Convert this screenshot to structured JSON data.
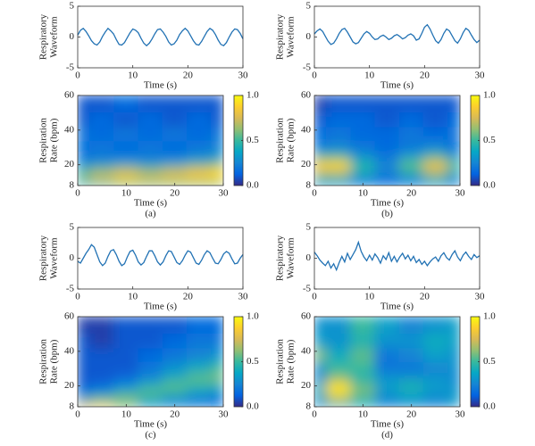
{
  "chart_data": [
    {
      "type": "line",
      "xlabel": "Time (s)",
      "ylabel": [
        "Respiratory",
        "Waveform"
      ],
      "color": "#2272b4",
      "x": [
        0,
        0.5,
        1,
        1.5,
        2,
        2.5,
        3,
        3.5,
        4,
        4.5,
        5,
        5.5,
        6,
        6.5,
        7,
        7.5,
        8,
        8.5,
        9,
        9.5,
        10,
        10.5,
        11,
        11.5,
        12,
        12.5,
        13,
        13.5,
        14,
        14.5,
        15,
        15.5,
        16,
        16.5,
        17,
        17.5,
        18,
        18.5,
        19,
        19.5,
        20,
        20.5,
        21,
        21.5,
        22,
        22.5,
        23,
        23.5,
        24,
        24.5,
        25,
        25.5,
        26,
        26.5,
        27,
        27.5,
        28,
        28.5,
        29,
        29.5,
        30
      ],
      "values": [
        0.3,
        1.1,
        1.4,
        0.9,
        0.2,
        -0.6,
        -1.1,
        -1.3,
        -0.8,
        0.1,
        0.8,
        1.4,
        1.0,
        0.5,
        -0.4,
        -1.2,
        -1.3,
        -0.9,
        -0.1,
        0.7,
        1.3,
        1.1,
        0.7,
        -0.2,
        -1.0,
        -1.4,
        -1.0,
        -0.3,
        0.5,
        1.2,
        1.3,
        0.8,
        0.1,
        -0.8,
        -1.3,
        -1.1,
        -0.5,
        0.4,
        1.0,
        1.4,
        1.0,
        0.2,
        -0.6,
        -1.2,
        -1.3,
        -0.7,
        0.1,
        0.9,
        1.4,
        1.1,
        0.4,
        -0.5,
        -1.2,
        -1.4,
        -0.9,
        0.0,
        0.8,
        1.3,
        1.2,
        0.6,
        -0.3
      ],
      "xlim": [
        0,
        30
      ],
      "xticks": [
        0,
        10,
        20,
        30
      ],
      "ylim": [
        -5,
        5
      ],
      "yticks": [
        -5,
        0,
        5
      ]
    },
    {
      "type": "heatmap",
      "xlabel": "Time (s)",
      "ylabel": [
        "Respiration",
        "Rate (bpm)"
      ],
      "caption": "(a)",
      "x": [
        0,
        5,
        10,
        15,
        20,
        25,
        30
      ],
      "y": [
        9,
        13,
        17,
        21,
        25,
        30,
        38,
        46,
        55
      ],
      "z": [
        [
          0.4,
          0.5,
          0.6,
          0.6,
          0.6,
          0.6,
          0.6
        ],
        [
          0.6,
          0.75,
          0.85,
          0.75,
          0.8,
          0.85,
          0.9
        ],
        [
          0.45,
          0.6,
          0.7,
          0.6,
          0.7,
          0.8,
          0.9
        ],
        [
          0.25,
          0.3,
          0.35,
          0.3,
          0.35,
          0.45,
          0.55
        ],
        [
          0.2,
          0.2,
          0.2,
          0.2,
          0.2,
          0.25,
          0.3
        ],
        [
          0.15,
          0.2,
          0.15,
          0.2,
          0.15,
          0.2,
          0.25
        ],
        [
          0.2,
          0.15,
          0.2,
          0.15,
          0.2,
          0.15,
          0.2
        ],
        [
          0.1,
          0.15,
          0.1,
          0.15,
          0.1,
          0.15,
          0.1
        ],
        [
          0.1,
          0.1,
          0.15,
          0.1,
          0.1,
          0.1,
          0.1
        ]
      ],
      "xlim": [
        0,
        30
      ],
      "xticks": [
        0,
        10,
        20,
        30
      ],
      "ylim": [
        8,
        60
      ],
      "yticks": [
        8,
        20,
        40,
        60
      ],
      "zlim": [
        0,
        1
      ],
      "zticks": [
        {
          "value": 0,
          "label": "0.0"
        },
        {
          "value": 0.5,
          "label": "0.5"
        },
        {
          "value": 1,
          "label": "1.0"
        }
      ],
      "colors": [
        "#352a87",
        "#0363e1",
        "#1485d4",
        "#06a7c6",
        "#38b99e",
        "#92bf73",
        "#d9ba56",
        "#fcce2e",
        "#f9fb0e"
      ]
    },
    {
      "type": "line",
      "xlabel": "Time (s)",
      "ylabel": [
        "Respiratory",
        "Waveform"
      ],
      "color": "#2272b4",
      "x": [
        0,
        0.5,
        1,
        1.5,
        2,
        2.5,
        3,
        3.5,
        4,
        4.5,
        5,
        5.5,
        6,
        6.5,
        7,
        7.5,
        8,
        8.5,
        9,
        9.5,
        10,
        10.5,
        11,
        11.5,
        12,
        12.5,
        13,
        13.5,
        14,
        14.5,
        15,
        15.5,
        16,
        16.5,
        17,
        17.5,
        18,
        18.5,
        19,
        19.5,
        20,
        20.5,
        21,
        21.5,
        22,
        22.5,
        23,
        23.5,
        24,
        24.5,
        25,
        25.5,
        26,
        26.5,
        27,
        27.5,
        28,
        28.5,
        29,
        29.5,
        30
      ],
      "values": [
        0.5,
        1.0,
        1.3,
        0.9,
        0.1,
        -0.7,
        -1.2,
        -1.0,
        -0.3,
        0.6,
        1.2,
        1.4,
        0.8,
        0.0,
        -0.8,
        -1.1,
        -0.9,
        -0.2,
        0.5,
        0.9,
        0.6,
        0.0,
        -0.4,
        -0.3,
        0.1,
        0.3,
        0.0,
        -0.4,
        -0.2,
        0.2,
        0.4,
        0.1,
        -0.3,
        -0.1,
        0.3,
        0.5,
        0.2,
        -0.5,
        -0.3,
        0.6,
        1.6,
        2.0,
        1.3,
        0.3,
        -0.6,
        -1.0,
        -0.4,
        0.6,
        1.3,
        1.0,
        0.2,
        -0.6,
        -1.0,
        -0.3,
        0.7,
        1.4,
        1.1,
        0.3,
        -0.4,
        -0.9,
        -0.5
      ],
      "xlim": [
        0,
        30
      ],
      "xticks": [
        0,
        10,
        20,
        30
      ],
      "ylim": [
        -5,
        5
      ],
      "yticks": [
        -5,
        0,
        5
      ]
    },
    {
      "type": "heatmap",
      "xlabel": "Time (s)",
      "ylabel": [
        "Respiration",
        "Rate (bpm)"
      ],
      "caption": "(b)",
      "x": [
        0,
        5,
        10,
        15,
        20,
        25,
        30
      ],
      "y": [
        9,
        13,
        17,
        21,
        25,
        30,
        38,
        46,
        55
      ],
      "z": [
        [
          0.3,
          0.3,
          0.2,
          0.15,
          0.2,
          0.3,
          0.2
        ],
        [
          0.5,
          0.5,
          0.3,
          0.2,
          0.3,
          0.5,
          0.3
        ],
        [
          0.8,
          0.8,
          0.45,
          0.25,
          0.5,
          0.75,
          0.45
        ],
        [
          0.85,
          0.9,
          0.45,
          0.25,
          0.55,
          0.8,
          0.5
        ],
        [
          0.5,
          0.5,
          0.3,
          0.2,
          0.35,
          0.5,
          0.3
        ],
        [
          0.2,
          0.25,
          0.2,
          0.15,
          0.2,
          0.25,
          0.15
        ],
        [
          0.15,
          0.2,
          0.15,
          0.15,
          0.2,
          0.15,
          0.2
        ],
        [
          0.1,
          0.15,
          0.15,
          0.1,
          0.15,
          0.1,
          0.15
        ],
        [
          0.05,
          0.1,
          0.1,
          0.1,
          0.1,
          0.1,
          0.1
        ]
      ],
      "xlim": [
        0,
        30
      ],
      "xticks": [
        0,
        10,
        20,
        30
      ],
      "ylim": [
        8,
        60
      ],
      "yticks": [
        8,
        20,
        40,
        60
      ],
      "zlim": [
        0,
        1
      ],
      "zticks": [
        {
          "value": 0,
          "label": "0.0"
        },
        {
          "value": 0.5,
          "label": "0.5"
        },
        {
          "value": 1,
          "label": "1.0"
        }
      ],
      "colors": [
        "#352a87",
        "#0363e1",
        "#1485d4",
        "#06a7c6",
        "#38b99e",
        "#92bf73",
        "#d9ba56",
        "#fcce2e",
        "#f9fb0e"
      ]
    },
    {
      "type": "line",
      "xlabel": "Time (s)",
      "ylabel": [
        "Respiratory",
        "Waveform"
      ],
      "color": "#2272b4",
      "x": [
        0,
        0.5,
        1,
        1.5,
        2,
        2.5,
        3,
        3.5,
        4,
        4.5,
        5,
        5.5,
        6,
        6.5,
        7,
        7.5,
        8,
        8.5,
        9,
        9.5,
        10,
        10.5,
        11,
        11.5,
        12,
        12.5,
        13,
        13.5,
        14,
        14.5,
        15,
        15.5,
        16,
        16.5,
        17,
        17.5,
        18,
        18.5,
        19,
        19.5,
        20,
        20.5,
        21,
        21.5,
        22,
        22.5,
        23,
        23.5,
        24,
        24.5,
        25,
        25.5,
        26,
        26.5,
        27,
        27.5,
        28,
        28.5,
        29,
        29.5,
        30
      ],
      "values": [
        -0.5,
        -0.8,
        0.0,
        0.8,
        1.4,
        2.2,
        1.8,
        0.6,
        -0.6,
        -1.2,
        -0.8,
        0.3,
        1.2,
        1.4,
        0.6,
        -0.5,
        -1.2,
        -0.9,
        0.2,
        1.1,
        1.3,
        0.5,
        -0.6,
        -1.1,
        -0.7,
        0.3,
        1.2,
        1.2,
        0.4,
        -0.6,
        -1.1,
        -0.6,
        0.4,
        1.2,
        1.1,
        0.2,
        -0.7,
        -1.0,
        -0.4,
        0.5,
        1.2,
        1.0,
        0.1,
        -0.8,
        -1.0,
        -0.3,
        0.6,
        1.2,
        0.9,
        0.0,
        -0.8,
        -0.9,
        -0.2,
        0.7,
        1.1,
        0.8,
        -0.1,
        -0.9,
        -0.8,
        0.0,
        0.6
      ],
      "xlim": [
        0,
        30
      ],
      "xticks": [
        0,
        10,
        20,
        30
      ],
      "ylim": [
        -5,
        5
      ],
      "yticks": [
        -5,
        0,
        5
      ]
    },
    {
      "type": "heatmap",
      "xlabel": "Time (s)",
      "ylabel": [
        "Respiration",
        "Rate (bpm)"
      ],
      "caption": "(c)",
      "x": [
        0,
        5,
        10,
        15,
        20,
        25,
        30
      ],
      "y": [
        9,
        13,
        17,
        21,
        25,
        30,
        38,
        46,
        55
      ],
      "z": [
        [
          0.75,
          0.85,
          0.6,
          0.3,
          0.25,
          0.2,
          0.15
        ],
        [
          0.35,
          0.5,
          0.6,
          0.45,
          0.3,
          0.25,
          0.2
        ],
        [
          0.15,
          0.25,
          0.4,
          0.55,
          0.5,
          0.35,
          0.3
        ],
        [
          0.1,
          0.15,
          0.25,
          0.4,
          0.55,
          0.5,
          0.45
        ],
        [
          0.1,
          0.1,
          0.15,
          0.25,
          0.4,
          0.55,
          0.6
        ],
        [
          0.1,
          0.1,
          0.1,
          0.2,
          0.3,
          0.4,
          0.5
        ],
        [
          0.1,
          0.1,
          0.1,
          0.15,
          0.2,
          0.25,
          0.3
        ],
        [
          0.1,
          0.05,
          0.1,
          0.1,
          0.15,
          0.2,
          0.2
        ],
        [
          0.05,
          0.05,
          0.1,
          0.1,
          0.1,
          0.15,
          0.15
        ]
      ],
      "xlim": [
        0,
        30
      ],
      "xticks": [
        0,
        10,
        20,
        30
      ],
      "ylim": [
        8,
        60
      ],
      "yticks": [
        8,
        20,
        40,
        60
      ],
      "zlim": [
        0,
        1
      ],
      "zticks": [
        {
          "value": 0,
          "label": "0.0"
        },
        {
          "value": 0.5,
          "label": "0.5"
        },
        {
          "value": 1,
          "label": "1.0"
        }
      ],
      "colors": [
        "#352a87",
        "#0363e1",
        "#1485d4",
        "#06a7c6",
        "#38b99e",
        "#92bf73",
        "#d9ba56",
        "#fcce2e",
        "#f9fb0e"
      ]
    },
    {
      "type": "line",
      "xlabel": "Time (s)",
      "ylabel": [
        "Respiratory",
        "Waveform"
      ],
      "color": "#2272b4",
      "x": [
        0,
        0.5,
        1,
        1.5,
        2,
        2.5,
        3,
        3.5,
        4,
        4.5,
        5,
        5.5,
        6,
        6.5,
        7,
        7.5,
        8,
        8.5,
        9,
        9.5,
        10,
        10.5,
        11,
        11.5,
        12,
        12.5,
        13,
        13.5,
        14,
        14.5,
        15,
        15.5,
        16,
        16.5,
        17,
        17.5,
        18,
        18.5,
        19,
        19.5,
        20,
        20.5,
        21,
        21.5,
        22,
        22.5,
        23,
        23.5,
        24,
        24.5,
        25,
        25.5,
        26,
        26.5,
        27,
        27.5,
        28,
        28.5,
        29,
        29.5,
        30
      ],
      "values": [
        1.0,
        0.4,
        -0.3,
        -0.8,
        -1.2,
        -0.5,
        -1.6,
        -0.9,
        -1.9,
        -0.7,
        0.3,
        -0.6,
        0.8,
        -0.2,
        0.6,
        1.4,
        2.6,
        1.1,
        0.2,
        -0.4,
        0.5,
        -0.3,
        0.7,
        0.1,
        -0.8,
        0.4,
        -0.2,
        0.9,
        -0.5,
        0.3,
        -0.6,
        0.2,
        0.8,
        -0.1,
        0.5,
        -0.4,
        0.3,
        -0.7,
        -0.2,
        -1.0,
        -0.5,
        -1.2,
        -0.6,
        -0.1,
        0.2,
        -0.5,
        0.4,
        0.9,
        0.1,
        -0.3,
        0.6,
        1.2,
        0.2,
        -0.4,
        0.5,
        1.0,
        0.3,
        -0.2,
        0.6,
        0.1,
        0.4
      ],
      "xlim": [
        0,
        30
      ],
      "xticks": [
        0,
        10,
        20,
        30
      ],
      "ylim": [
        -5,
        5
      ],
      "yticks": [
        -5,
        0,
        5
      ]
    },
    {
      "type": "heatmap",
      "xlabel": "Time (s)",
      "ylabel": [
        "Respiration",
        "Rate (bpm)"
      ],
      "caption": "(d)",
      "x": [
        0,
        5,
        10,
        15,
        20,
        25,
        30
      ],
      "y": [
        9,
        13,
        17,
        21,
        25,
        30,
        38,
        46,
        55
      ],
      "z": [
        [
          0.3,
          0.45,
          0.4,
          0.2,
          0.25,
          0.2,
          0.3
        ],
        [
          0.35,
          0.7,
          0.5,
          0.3,
          0.35,
          0.3,
          0.35
        ],
        [
          0.4,
          0.95,
          0.6,
          0.3,
          0.4,
          0.3,
          0.3
        ],
        [
          0.4,
          0.9,
          0.55,
          0.35,
          0.45,
          0.35,
          0.3
        ],
        [
          0.25,
          0.6,
          0.45,
          0.3,
          0.3,
          0.3,
          0.25
        ],
        [
          0.3,
          0.5,
          0.5,
          0.2,
          0.2,
          0.25,
          0.3
        ],
        [
          0.6,
          0.4,
          0.55,
          0.2,
          0.25,
          0.35,
          0.3
        ],
        [
          0.35,
          0.3,
          0.45,
          0.3,
          0.3,
          0.4,
          0.35
        ],
        [
          0.3,
          0.3,
          0.5,
          0.35,
          0.25,
          0.3,
          0.35
        ]
      ],
      "xlim": [
        0,
        30
      ],
      "xticks": [
        0,
        10,
        20,
        30
      ],
      "ylim": [
        8,
        60
      ],
      "yticks": [
        8,
        20,
        40,
        60
      ],
      "zlim": [
        0,
        1
      ],
      "zticks": [
        {
          "value": 0,
          "label": "0.0"
        },
        {
          "value": 0.5,
          "label": "0.5"
        },
        {
          "value": 1,
          "label": "1.0"
        }
      ],
      "colors": [
        "#352a87",
        "#0363e1",
        "#1485d4",
        "#06a7c6",
        "#38b99e",
        "#92bf73",
        "#d9ba56",
        "#fcce2e",
        "#f9fb0e"
      ]
    }
  ]
}
